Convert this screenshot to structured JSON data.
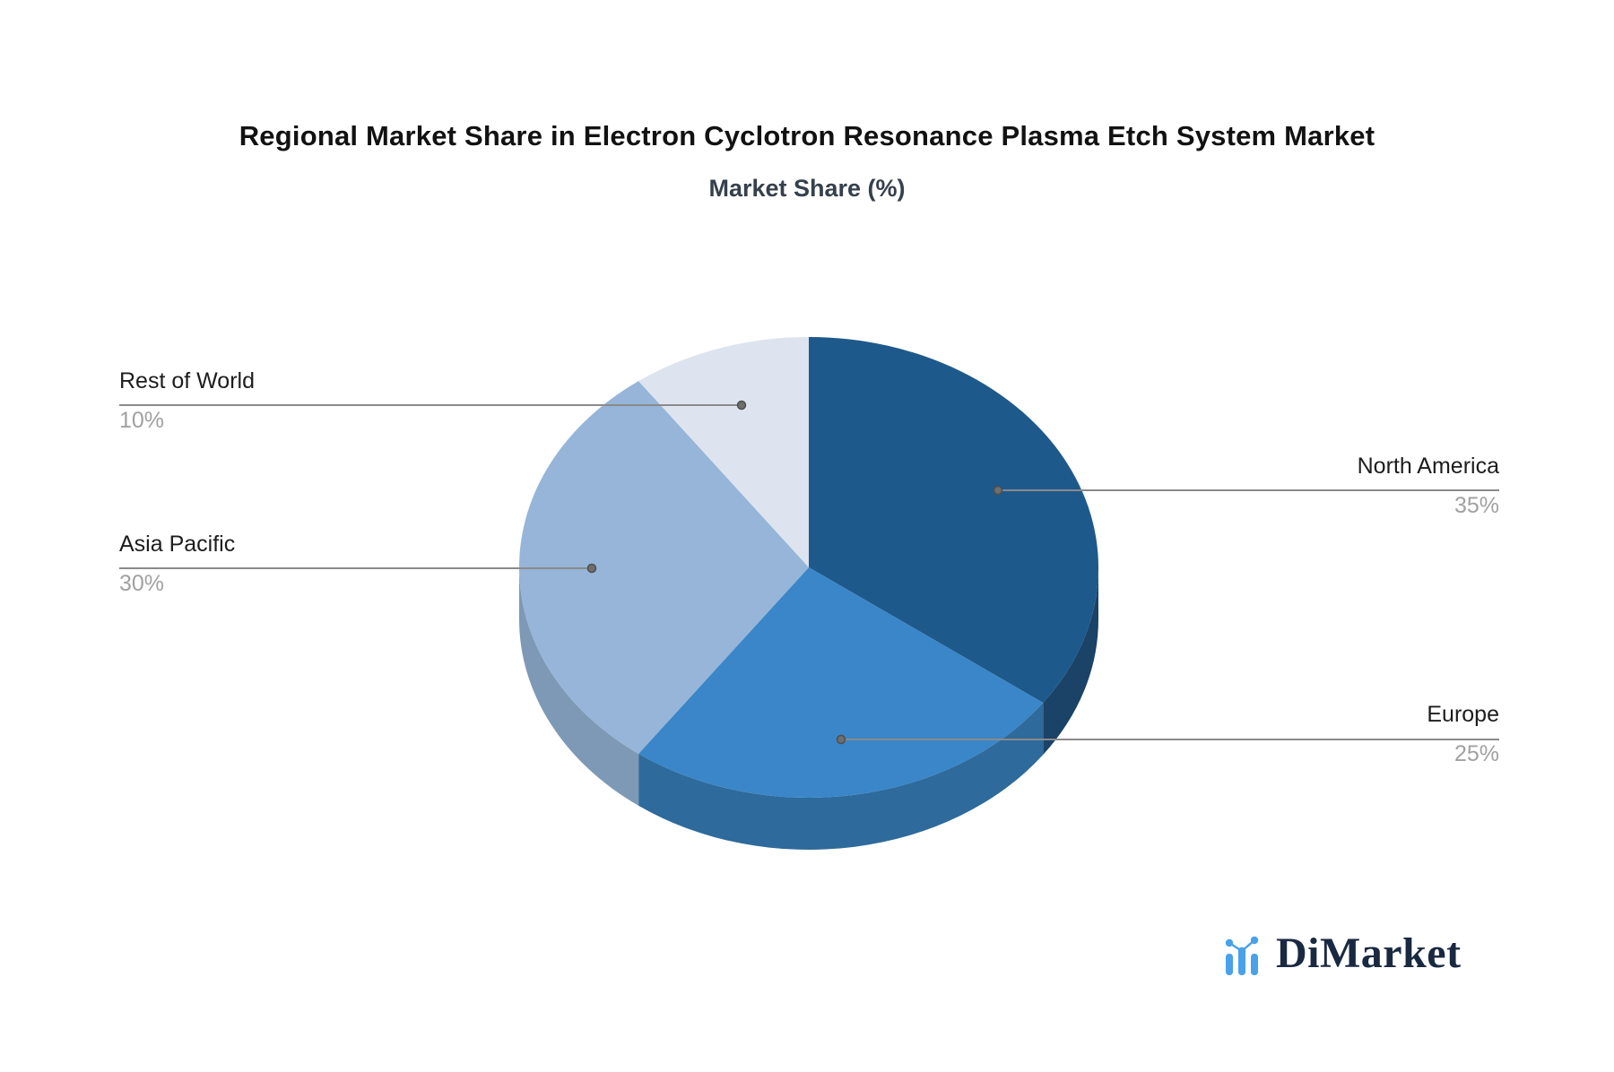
{
  "chart_data": {
    "type": "pie",
    "effect": "3d",
    "title": "Regional Market Share in Electron Cyclotron Resonance Plasma Etch System Market",
    "subtitle": "Market Share (%)",
    "start_angle_deg": 90,
    "direction": "clockwise",
    "legend": "none",
    "label_style": "callout-lines-with-percent",
    "slices": [
      {
        "label": "North America",
        "value": 35,
        "display": "35%",
        "color": "#1e598c",
        "side_color": "#1b4267"
      },
      {
        "label": "Europe",
        "value": 25,
        "display": "25%",
        "color": "#3a86c8",
        "side_color": "#2e6a9b"
      },
      {
        "label": "Asia Pacific",
        "value": 30,
        "display": "30%",
        "color": "#96b5d8",
        "side_color": "#7e99b6"
      },
      {
        "label": "Rest of World",
        "value": 10,
        "display": "10%",
        "color": "#dde4ef",
        "side_color": "#b8c3d2"
      }
    ],
    "callout_colors": {
      "line": "#8a8a8a",
      "dot_fill": "#6e6e6e",
      "dot_stroke": "#4f4f4f",
      "label_text": "#1d1d1d",
      "value_text": "#a1a1a1"
    }
  },
  "branding": {
    "logo_text": "DiMarket",
    "logo_accent": "#49a1e9",
    "logo_text_color": "#1a2942"
  }
}
